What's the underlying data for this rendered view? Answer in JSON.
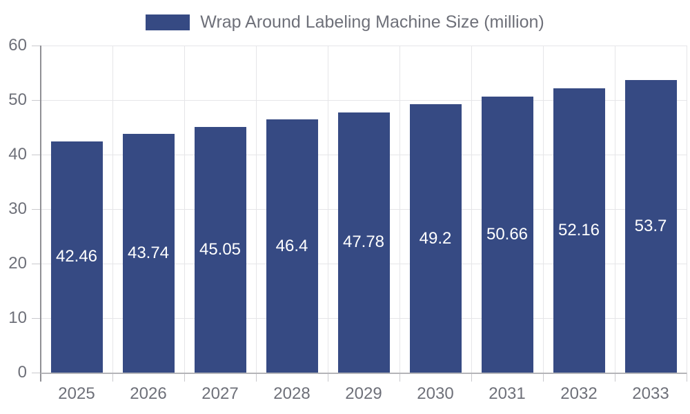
{
  "legend": {
    "label": "Wrap Around Labeling Machine Size (million)"
  },
  "chart_data": {
    "type": "bar",
    "title": "",
    "xlabel": "",
    "ylabel": "",
    "categories": [
      "2025",
      "2026",
      "2027",
      "2028",
      "2029",
      "2030",
      "2031",
      "2032",
      "2033"
    ],
    "series": [
      {
        "name": "Wrap Around Labeling Machine Size (million)",
        "values": [
          42.46,
          43.74,
          45.05,
          46.4,
          47.78,
          49.2,
          50.66,
          52.16,
          53.7
        ]
      }
    ],
    "ylim": [
      0,
      60
    ],
    "y_ticks": [
      0,
      10,
      20,
      30,
      40,
      50,
      60
    ],
    "grid": true,
    "legend_position": "top",
    "value_labels_position": "inside-middle",
    "colors": {
      "bar": "#364A83",
      "axis_text": "#6E7079",
      "value_label": "#FFFFFF",
      "grid_line": "#E5E5E8",
      "axis_line_left": "#8F8F94",
      "axis_line_bottom": "#B4B4B8",
      "tick": "#C9C9CD"
    }
  }
}
